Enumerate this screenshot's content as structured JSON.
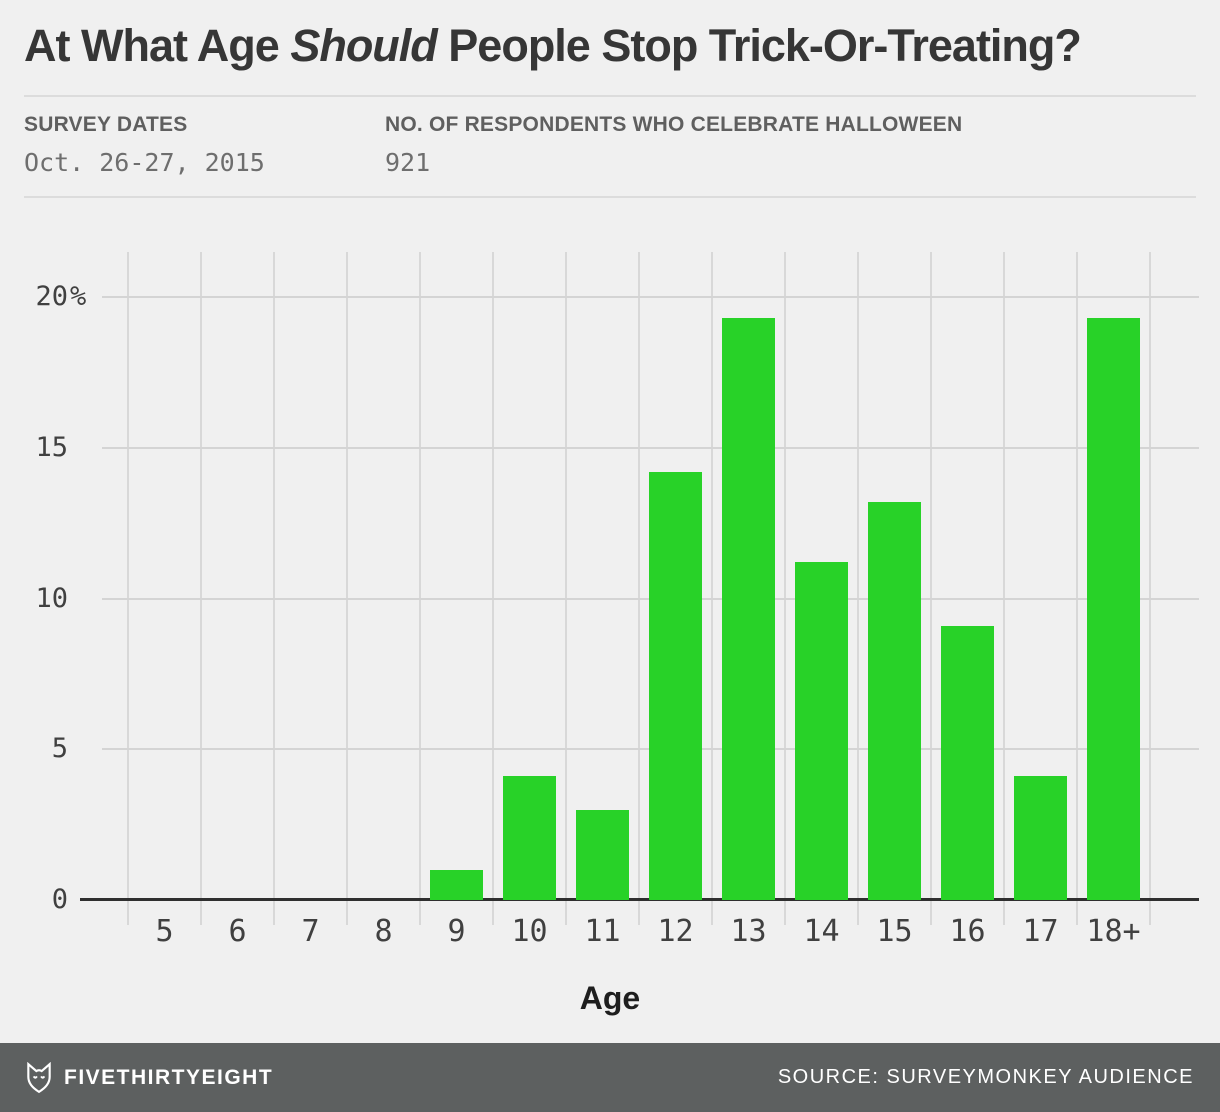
{
  "header": {
    "title": {
      "prefix": "At What Age ",
      "italic": "Should",
      "suffix": " People Stop Trick-Or-Treating?"
    },
    "meta": [
      {
        "label": "SURVEY DATES",
        "value": "Oct. 26-27, 2015"
      },
      {
        "label": "NO. OF RESPONDENTS WHO CELEBRATE HALLOWEEN",
        "value": "921"
      }
    ]
  },
  "chart_data": {
    "type": "bar",
    "title": "At What Age Should People Stop Trick-Or-Treating?",
    "categories": [
      "5",
      "6",
      "7",
      "8",
      "9",
      "10",
      "11",
      "12",
      "13",
      "14",
      "15",
      "16",
      "17",
      "18+"
    ],
    "values": [
      0,
      0,
      0,
      0,
      1.0,
      4.1,
      3.0,
      14.2,
      19.3,
      11.2,
      13.2,
      9.1,
      4.1,
      19.3
    ],
    "xlabel": "Age",
    "ylabel": "",
    "ylim": [
      0,
      21.5
    ],
    "yticks": [
      {
        "value": 20,
        "label": "20",
        "suffix": "%"
      },
      {
        "value": 15,
        "label": "15",
        "suffix": ""
      },
      {
        "value": 10,
        "label": "10",
        "suffix": ""
      },
      {
        "value": 5,
        "label": "5",
        "suffix": ""
      },
      {
        "value": 0,
        "label": "0",
        "suffix": ""
      }
    ],
    "grid": true,
    "legend_position": "none",
    "bar_color": "#28d228"
  },
  "footer": {
    "brand": "FIVETHIRTYEIGHT",
    "source": "SOURCE: SURVEYMONKEY AUDIENCE"
  },
  "colors": {
    "background": "#f0f0f0",
    "bar": "#28d228",
    "footer_bg": "#5d6060",
    "gridline": "#d6d6d6",
    "axis": "#2f2f2f",
    "title_text": "#363636"
  }
}
